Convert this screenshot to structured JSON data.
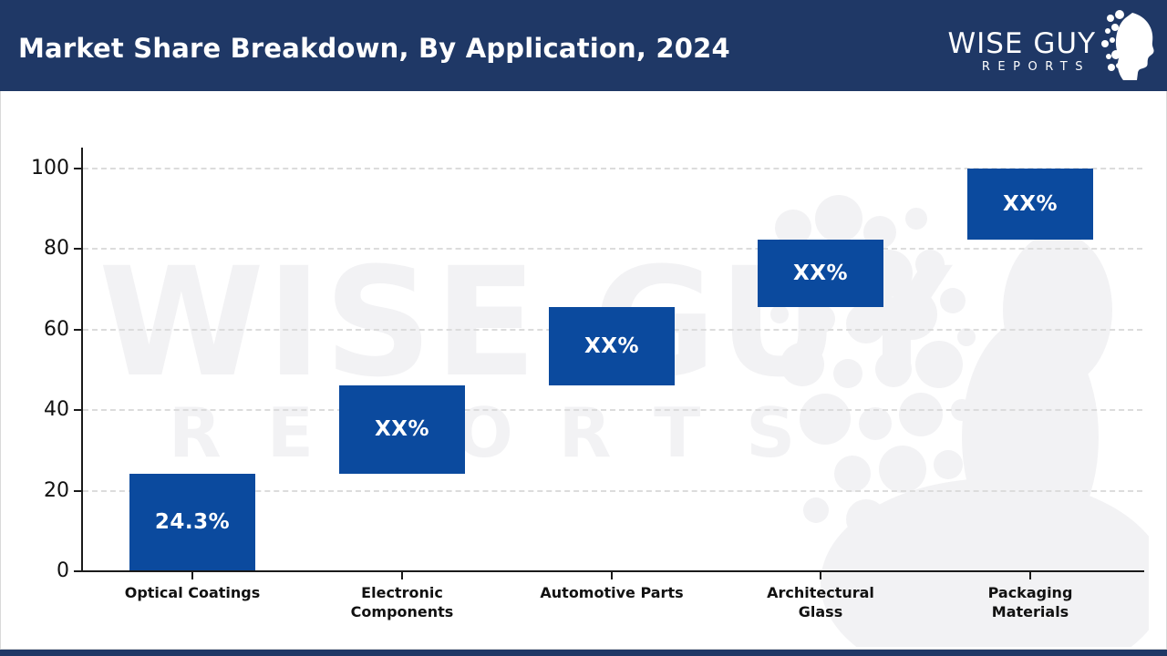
{
  "header": {
    "title": "Market Share Breakdown, By Application, 2024",
    "logo_line1": "WISE GUY",
    "logo_line2": "REPORTS"
  },
  "watermark": {
    "line1": "WISE GUY",
    "line2": "REPORTS"
  },
  "colors": {
    "header_bg": "#1f3866",
    "footer_bg": "#1f3866",
    "bar_fill": "#0b4a9e",
    "bar_label_text": "#ffffff",
    "gridline": "#dcdcdc",
    "axis": "#1a1a1a",
    "watermark": "#f2f2f4"
  },
  "chart_data": {
    "type": "bar",
    "subtype": "waterfall",
    "title": "Market Share Breakdown, By Application, 2024",
    "xlabel": "",
    "ylabel": "",
    "ylim": [
      0,
      100
    ],
    "yticks": [
      0,
      20,
      40,
      60,
      80,
      100
    ],
    "grid": "horizontal-dashed",
    "legend": "none",
    "categories": [
      "Optical Coatings",
      "Electronic Components",
      "Automotive Parts",
      "Architectural Glass",
      "Packaging Materials"
    ],
    "category_lines": [
      [
        "Optical Coatings"
      ],
      [
        "Electronic",
        "Components"
      ],
      [
        "Automotive Parts"
      ],
      [
        "Architectural",
        "Glass"
      ],
      [
        "Packaging",
        "Materials"
      ]
    ],
    "series": [
      {
        "name": "Market Share",
        "segments": [
          {
            "category": "Optical Coatings",
            "start": 0,
            "end": 24.3,
            "label": "24.3%"
          },
          {
            "category": "Electronic Components",
            "start": 24.3,
            "end": 46.2,
            "label": "XX%"
          },
          {
            "category": "Automotive Parts",
            "start": 46.2,
            "end": 65.5,
            "label": "XX%"
          },
          {
            "category": "Architectural Glass",
            "start": 65.5,
            "end": 82.3,
            "label": "XX%"
          },
          {
            "category": "Packaging Materials",
            "start": 82.3,
            "end": 100,
            "label": "XX%"
          }
        ]
      }
    ]
  }
}
